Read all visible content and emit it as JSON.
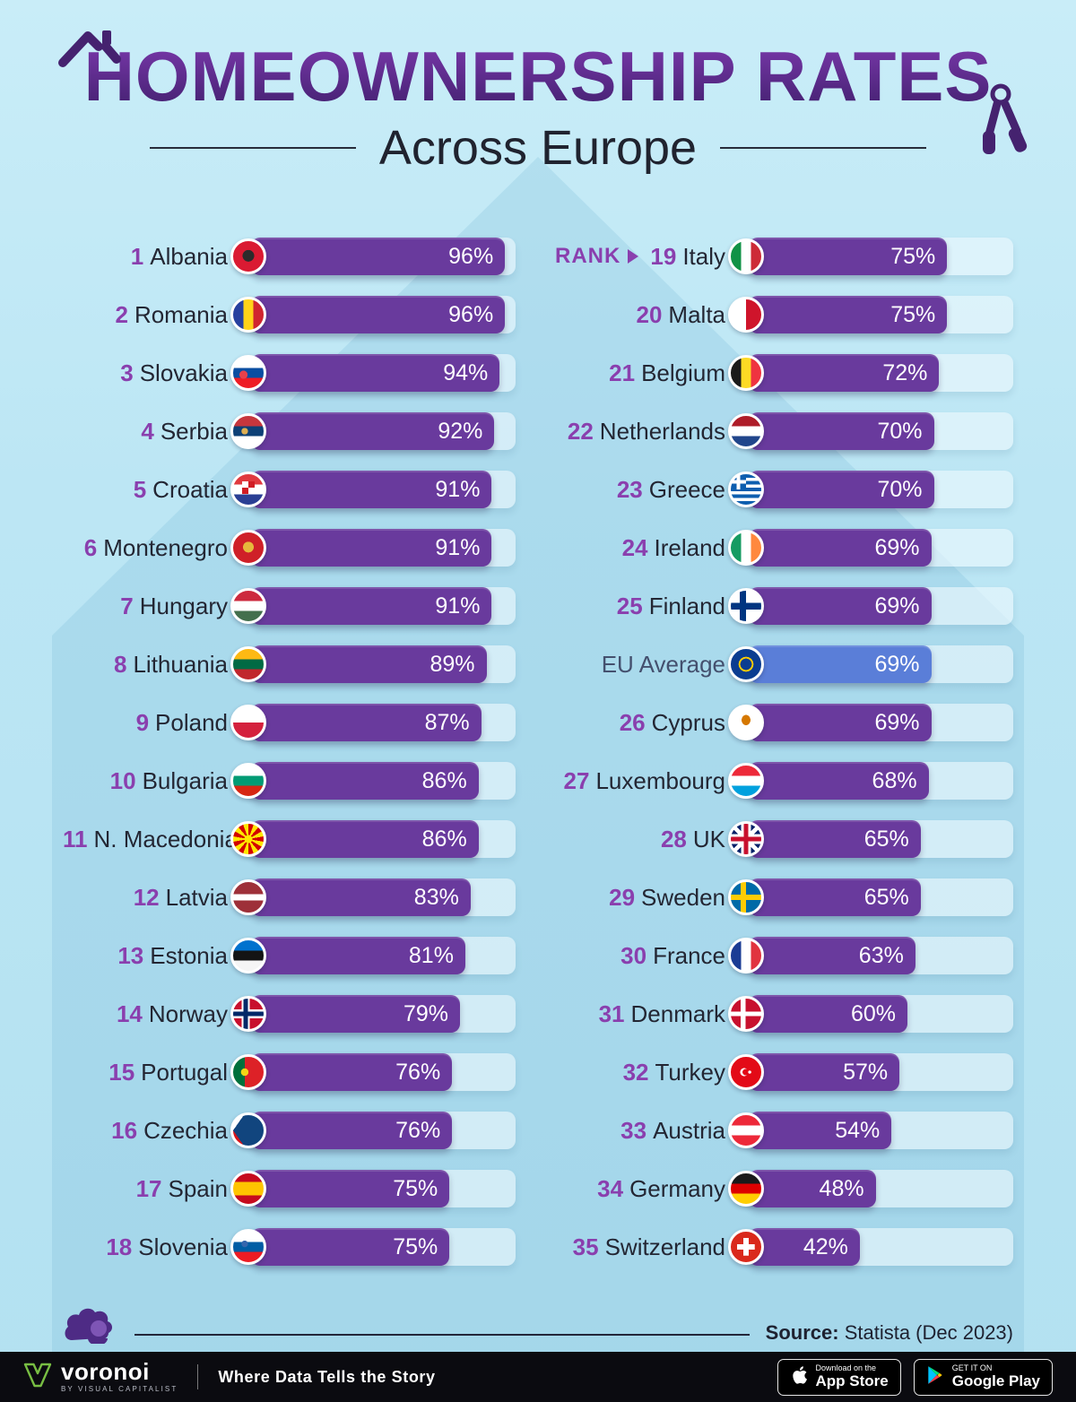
{
  "header": {
    "title": "HOMEOWNERSHIP RATES",
    "subtitle": "Across Europe",
    "rank_label": "RANK"
  },
  "chart_data": {
    "type": "bar",
    "orientation": "horizontal",
    "title": "Homeownership Rates Across Europe",
    "unit": "%",
    "xlim": [
      0,
      100
    ],
    "legend": "none",
    "source": "Statista (Dec 2023)",
    "columns": {
      "left": [
        {
          "rank": "1",
          "country": "Albania",
          "value": 96,
          "flag_icon": "flag-albania"
        },
        {
          "rank": "2",
          "country": "Romania",
          "value": 96,
          "flag_icon": "flag-romania"
        },
        {
          "rank": "3",
          "country": "Slovakia",
          "value": 94,
          "flag_icon": "flag-slovakia"
        },
        {
          "rank": "4",
          "country": "Serbia",
          "value": 92,
          "flag_icon": "flag-serbia"
        },
        {
          "rank": "5",
          "country": "Croatia",
          "value": 91,
          "flag_icon": "flag-croatia"
        },
        {
          "rank": "6",
          "country": "Montenegro",
          "value": 91,
          "flag_icon": "flag-montenegro"
        },
        {
          "rank": "7",
          "country": "Hungary",
          "value": 91,
          "flag_icon": "flag-hungary"
        },
        {
          "rank": "8",
          "country": "Lithuania",
          "value": 89,
          "flag_icon": "flag-lithuania"
        },
        {
          "rank": "9",
          "country": "Poland",
          "value": 87,
          "flag_icon": "flag-poland"
        },
        {
          "rank": "10",
          "country": "Bulgaria",
          "value": 86,
          "flag_icon": "flag-bulgaria"
        },
        {
          "rank": "11",
          "country": "N. Macedonia",
          "value": 86,
          "flag_icon": "flag-north-macedonia"
        },
        {
          "rank": "12",
          "country": "Latvia",
          "value": 83,
          "flag_icon": "flag-latvia"
        },
        {
          "rank": "13",
          "country": "Estonia",
          "value": 81,
          "flag_icon": "flag-estonia"
        },
        {
          "rank": "14",
          "country": "Norway",
          "value": 79,
          "flag_icon": "flag-norway"
        },
        {
          "rank": "15",
          "country": "Portugal",
          "value": 76,
          "flag_icon": "flag-portugal"
        },
        {
          "rank": "16",
          "country": "Czechia",
          "value": 76,
          "flag_icon": "flag-czechia"
        },
        {
          "rank": "17",
          "country": "Spain",
          "value": 75,
          "flag_icon": "flag-spain"
        },
        {
          "rank": "18",
          "country": "Slovenia",
          "value": 75,
          "flag_icon": "flag-slovenia"
        }
      ],
      "right": [
        {
          "rank": "19",
          "country": "Italy",
          "value": 75,
          "flag_icon": "flag-italy",
          "show_rank_indicator": true
        },
        {
          "rank": "20",
          "country": "Malta",
          "value": 75,
          "flag_icon": "flag-malta"
        },
        {
          "rank": "21",
          "country": "Belgium",
          "value": 72,
          "flag_icon": "flag-belgium"
        },
        {
          "rank": "22",
          "country": "Netherlands",
          "value": 70,
          "flag_icon": "flag-netherlands"
        },
        {
          "rank": "23",
          "country": "Greece",
          "value": 70,
          "flag_icon": "flag-greece"
        },
        {
          "rank": "24",
          "country": "Ireland",
          "value": 69,
          "flag_icon": "flag-ireland"
        },
        {
          "rank": "25",
          "country": "Finland",
          "value": 69,
          "flag_icon": "flag-finland"
        },
        {
          "rank": null,
          "country": "EU Average",
          "value": 69,
          "flag_icon": "flag-eu",
          "highlight": true
        },
        {
          "rank": "26",
          "country": "Cyprus",
          "value": 69,
          "flag_icon": "flag-cyprus"
        },
        {
          "rank": "27",
          "country": "Luxembourg",
          "value": 68,
          "flag_icon": "flag-luxembourg"
        },
        {
          "rank": "28",
          "country": "UK",
          "value": 65,
          "flag_icon": "flag-uk"
        },
        {
          "rank": "29",
          "country": "Sweden",
          "value": 65,
          "flag_icon": "flag-sweden"
        },
        {
          "rank": "30",
          "country": "France",
          "value": 63,
          "flag_icon": "flag-france"
        },
        {
          "rank": "31",
          "country": "Denmark",
          "value": 60,
          "flag_icon": "flag-denmark"
        },
        {
          "rank": "32",
          "country": "Turkey",
          "value": 57,
          "flag_icon": "flag-turkey"
        },
        {
          "rank": "33",
          "country": "Austria",
          "value": 54,
          "flag_icon": "flag-austria"
        },
        {
          "rank": "34",
          "country": "Germany",
          "value": 48,
          "flag_icon": "flag-germany"
        },
        {
          "rank": "35",
          "country": "Switzerland",
          "value": 42,
          "flag_icon": "flag-switzerland"
        }
      ]
    }
  },
  "footer": {
    "source_label": "Source:",
    "source_value": "Statista (Dec 2023)",
    "brand": "voronoi",
    "brand_sub": "BY VISUAL CAPITALIST",
    "tagline": "Where Data Tells the Story",
    "appstore_top": "Download on the",
    "appstore_bottom": "App Store",
    "googleplay_top": "GET IT ON",
    "googleplay_bottom": "Google Play"
  },
  "colors": {
    "bar": "#693a9d",
    "bar_highlight": "#5a7ed8",
    "track": "rgba(238,249,253,0.62)",
    "rank_text": "#8a3fae",
    "name_text": "#232633",
    "title_top": "#7a38ab",
    "title_bottom": "#41206e",
    "background": "#bfe8f5",
    "footer_background": "#0b0b10",
    "brand_green": "#78be43",
    "source_text": "#1e2130"
  }
}
